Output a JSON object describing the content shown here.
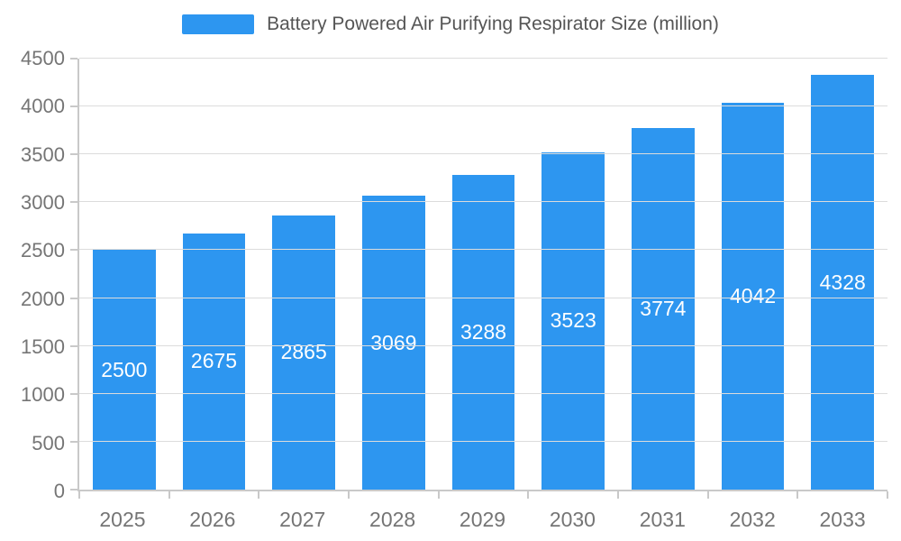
{
  "chart_data": {
    "type": "bar",
    "title": "Battery Powered Air Purifying Respirator Size (million)",
    "categories": [
      "2025",
      "2026",
      "2027",
      "2028",
      "2029",
      "2030",
      "2031",
      "2032",
      "2033"
    ],
    "values": [
      2500,
      2675,
      2865,
      3069,
      3288,
      3523,
      3774,
      4042,
      4328
    ],
    "xlabel": "",
    "ylabel": "",
    "ylim": [
      0,
      4500
    ],
    "yticks": [
      0,
      500,
      1000,
      1500,
      2000,
      2500,
      3000,
      3500,
      4000,
      4500
    ],
    "grid": true,
    "legend_position": "top",
    "bar_color": "#2d96f0",
    "bar_label_color": "#ffffff",
    "axis_text_color": "#757575",
    "title_color": "#555555"
  }
}
